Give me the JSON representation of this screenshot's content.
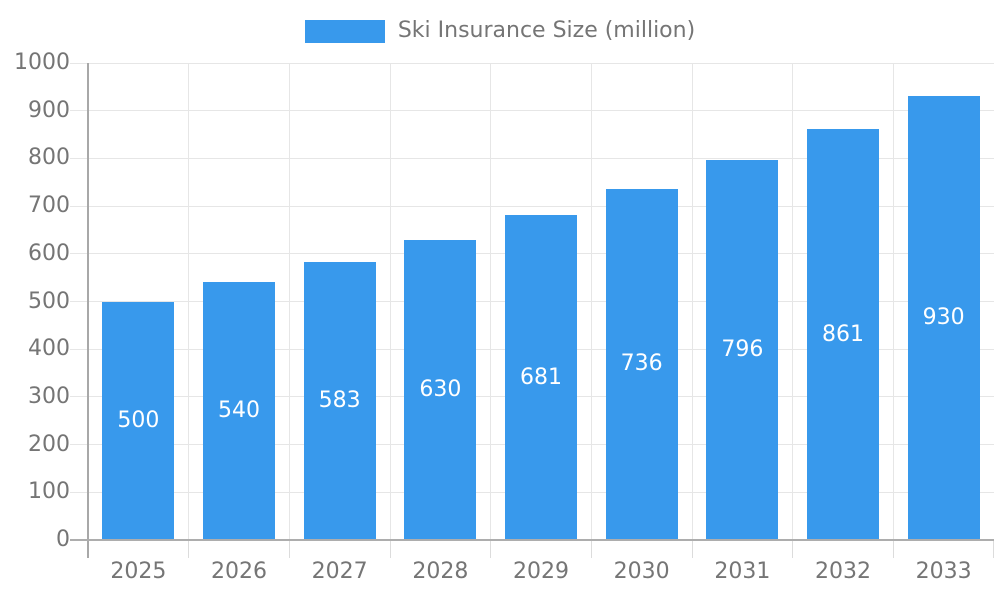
{
  "legend": {
    "label": "Ski Insurance Size (million)"
  },
  "colors": {
    "bar": "#3899EC",
    "bar_label": "#ffffff",
    "axis_text": "#757575",
    "gridline": "#e6e6e6",
    "axis_line": "#a8a8a8",
    "background": "#ffffff"
  },
  "chart_data": {
    "type": "bar",
    "title": "Ski Insurance Size (million)",
    "categories": [
      "2025",
      "2026",
      "2027",
      "2028",
      "2029",
      "2030",
      "2031",
      "2032",
      "2033"
    ],
    "values": [
      500,
      540,
      583,
      630,
      681,
      736,
      796,
      861,
      930
    ],
    "yticks": [
      0,
      100,
      200,
      300,
      400,
      500,
      600,
      700,
      800,
      900,
      1000
    ],
    "ylim": [
      0,
      1000
    ],
    "xlabel": "",
    "ylabel": "",
    "grid": true,
    "legend_position": "top",
    "bar_labels_inside": true
  }
}
